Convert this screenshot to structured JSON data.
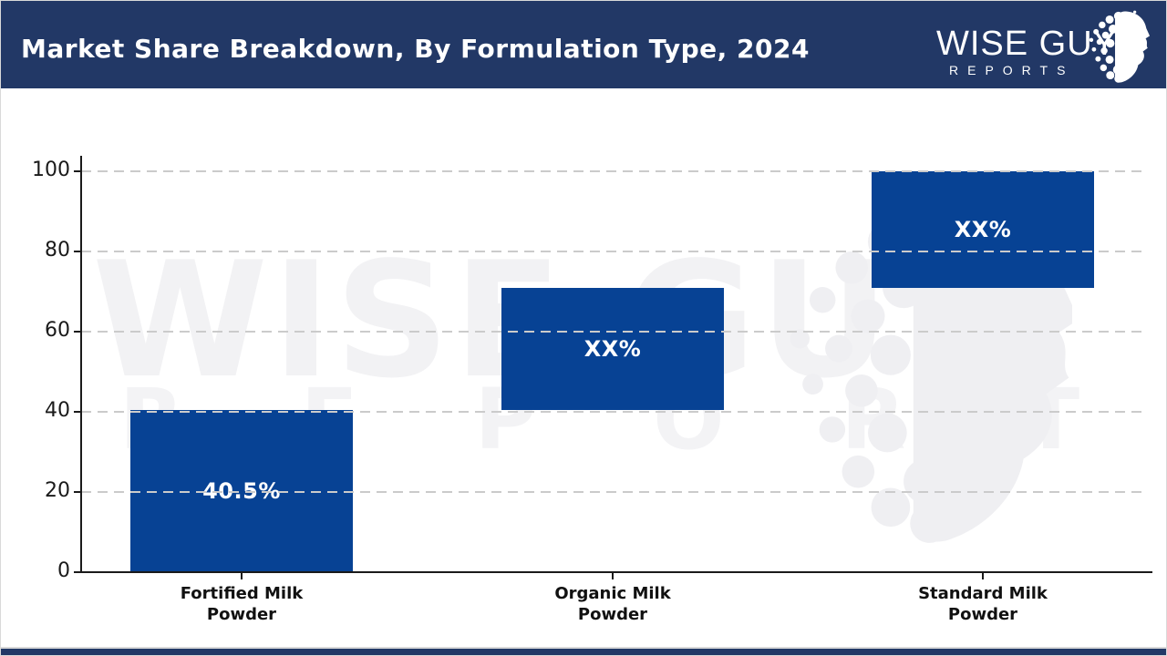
{
  "header": {
    "title": "Market Share Breakdown, By Formulation Type, 2024",
    "logo": {
      "line1": "WISE GUY",
      "line2": "REPORTS",
      "face_icon": "dotted-face-profile-icon"
    }
  },
  "watermark": {
    "line1": "WISE GUY",
    "line2": "R E P O R T S",
    "face_icon": "dotted-face-profile-icon"
  },
  "colors": {
    "header_bg": "#223866",
    "footer_bg": "#223866",
    "bar": "#074294",
    "bar_label_text": "#ffffff",
    "gridline": "#cbcbcb",
    "axis": "#1a1a1a",
    "watermark": "#f2f2f4",
    "background": "#ffffff"
  },
  "chart_data": {
    "type": "bar",
    "subtype": "waterfall",
    "title": "Market Share Breakdown, By Formulation Type, 2024",
    "categories": [
      "Fortified Milk\nPowder",
      "Organic Milk\nPowder",
      "Standard Milk\nPowder"
    ],
    "segments": [
      {
        "category": "Fortified Milk Powder",
        "start": 0,
        "end": 40.5,
        "label": "40.5%"
      },
      {
        "category": "Organic Milk Powder",
        "start": 40.5,
        "end": 70.8,
        "label": "XX%"
      },
      {
        "category": "Standard Milk Powder",
        "start": 70.8,
        "end": 100,
        "label": "XX%"
      }
    ],
    "yticks": [
      0,
      20,
      40,
      60,
      80,
      100
    ],
    "ylim": [
      0,
      100
    ],
    "grid": "dashed-horizontal-above-bars",
    "legend": "none",
    "xlabel": "",
    "ylabel": ""
  }
}
